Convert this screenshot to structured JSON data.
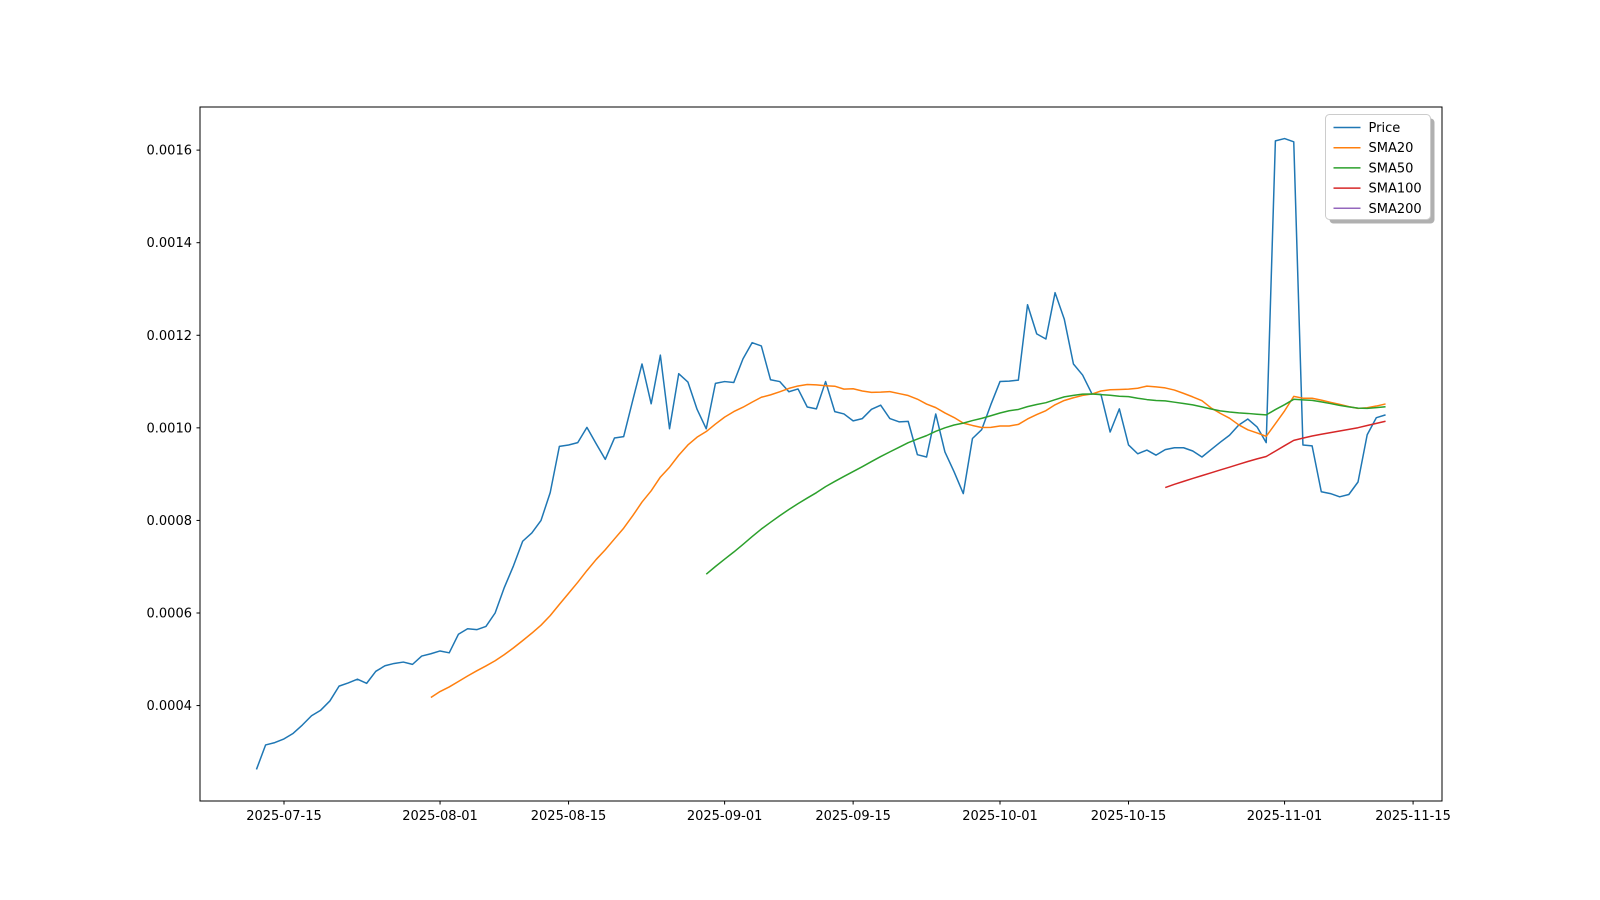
{
  "chart_data": {
    "type": "line",
    "title": "",
    "xlabel": "",
    "ylabel": "",
    "x_start_date": "2025-07-12",
    "x_frequency": "daily",
    "x_tick_labels": [
      "2025-07-15",
      "2025-08-01",
      "2025-08-15",
      "2025-09-01",
      "2025-09-15",
      "2025-10-01",
      "2025-10-15",
      "2025-11-01",
      "2025-11-15"
    ],
    "y_tick_values": [
      0.0004,
      0.0006,
      0.0008,
      0.001,
      0.0012,
      0.0014,
      0.0016
    ],
    "y_tick_format_decimals": 4,
    "grid": false,
    "legend": {
      "position": "upper right",
      "entries": [
        "Price",
        "SMA20",
        "SMA50",
        "SMA100",
        "SMA200"
      ]
    },
    "series": [
      {
        "name": "Price",
        "color": "#1f77b4",
        "kind": "price"
      },
      {
        "name": "SMA20",
        "color": "#ff7f0e",
        "kind": "sma",
        "window": 20
      },
      {
        "name": "SMA50",
        "color": "#2ca02c",
        "kind": "sma",
        "window": 50
      },
      {
        "name": "SMA100",
        "color": "#d62728",
        "kind": "sma",
        "window": 100
      },
      {
        "name": "SMA200",
        "color": "#9467bd",
        "kind": "sma",
        "window": 200
      }
    ],
    "price_values": [
      0.000262,
      0.000315,
      0.00032,
      0.000328,
      0.00034,
      0.000358,
      0.000378,
      0.00039,
      0.00041,
      0.000442,
      0.000449,
      0.000457,
      0.000448,
      0.000474,
      0.000486,
      0.000491,
      0.000494,
      0.000489,
      0.000507,
      0.000512,
      0.000518,
      0.000514,
      0.000554,
      0.000566,
      0.000564,
      0.000571,
      0.0006,
      0.000655,
      0.000702,
      0.000755,
      0.000773,
      0.0008,
      0.00086,
      0.00096,
      0.000963,
      0.000968,
      0.001001,
      0.000966,
      0.000932,
      0.000978,
      0.000981,
      0.00106,
      0.001138,
      0.001052,
      0.001157,
      0.000998,
      0.001117,
      0.001099,
      0.00104,
      0.000998,
      0.001096,
      0.0011,
      0.001098,
      0.001149,
      0.001184,
      0.001177,
      0.001104,
      0.0011,
      0.001078,
      0.001084,
      0.001045,
      0.001041,
      0.0011,
      0.001035,
      0.00103,
      0.001015,
      0.00102,
      0.00104,
      0.001049,
      0.00102,
      0.001013,
      0.001014,
      0.000942,
      0.000937,
      0.00103,
      0.000948,
      0.000905,
      0.000858,
      0.000977,
      0.000996,
      0.00105,
      0.0011,
      0.001101,
      0.001103,
      0.001266,
      0.001203,
      0.001192,
      0.001292,
      0.001235,
      0.001138,
      0.001114,
      0.001074,
      0.001072,
      0.000991,
      0.001041,
      0.000963,
      0.000944,
      0.000952,
      0.000941,
      0.000953,
      0.000957,
      0.000957,
      0.00095,
      0.000937,
      0.000953,
      0.000969,
      0.000984,
      0.001006,
      0.001019,
      0.001002,
      0.000968,
      0.00162,
      0.001625,
      0.001618,
      0.000963,
      0.000961,
      0.000862,
      0.000858,
      0.000851,
      0.000856,
      0.000883,
      0.000985,
      0.001022,
      0.001028
    ],
    "style": {
      "line_width": 1.5,
      "spine_color": "#000000",
      "background": "#ffffff",
      "legend_border": "#cccccc",
      "legend_shadow": "#b0b0b0"
    }
  }
}
